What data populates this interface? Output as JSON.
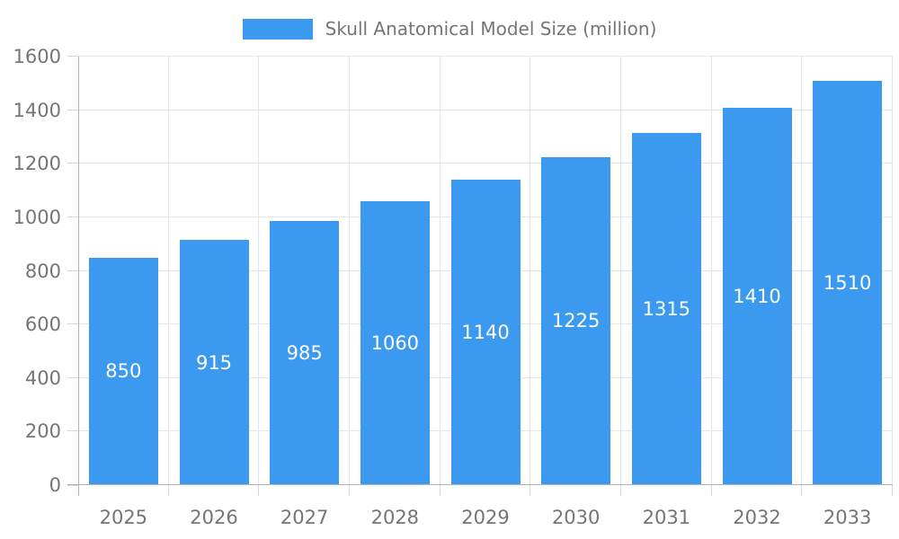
{
  "chart_data": {
    "type": "bar",
    "title": "Skull Anatomical Model Size (million)",
    "legend_position": "top",
    "categories": [
      "2025",
      "2026",
      "2027",
      "2028",
      "2029",
      "2030",
      "2031",
      "2032",
      "2033"
    ],
    "values": [
      850,
      915,
      985,
      1060,
      1140,
      1225,
      1315,
      1410,
      1510
    ],
    "xlabel": "",
    "ylabel": "",
    "ylim": [
      0,
      1600
    ],
    "yticks": [
      0,
      200,
      400,
      600,
      800,
      1000,
      1200,
      1400,
      1600
    ],
    "grid": true,
    "bar_labels_inside": true,
    "colors": {
      "bar": "#3b99f0",
      "bar_label": "#ffffff",
      "axis_line": "#b0b3b9",
      "tick": "#d4d6db",
      "gridline": "#e4e5e9",
      "axis_text": "#757575",
      "legend_text": "#757575",
      "background": "#ffffff"
    }
  }
}
